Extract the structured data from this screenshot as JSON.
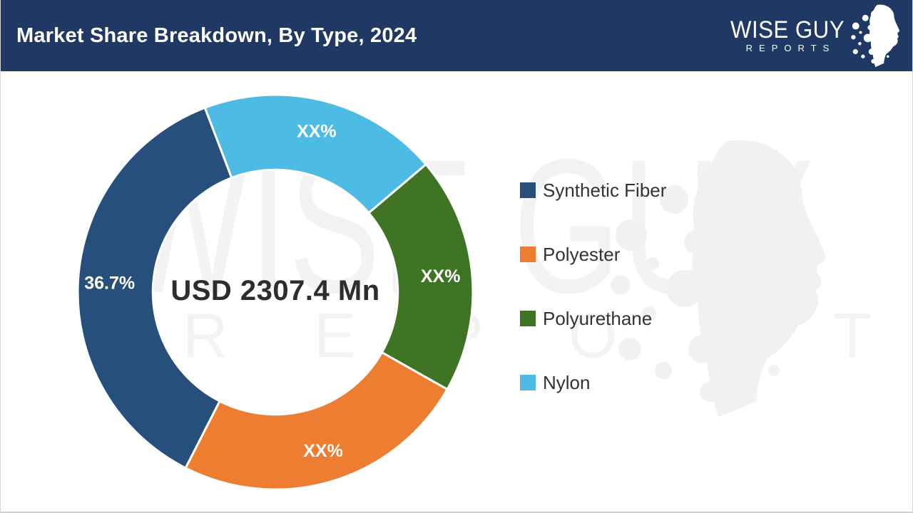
{
  "header": {
    "title": "Market Share Breakdown, By Type, 2024",
    "logo_name": "WISE GUY",
    "logo_subtitle": "REPORTS"
  },
  "watermark": {
    "line1": "WISE GUY",
    "line2": "R E P O R T S"
  },
  "chart_data": {
    "type": "donut",
    "title": "Market Share Breakdown, By Type, 2024",
    "center_label": "USD 2307.4 Mn",
    "start_angle_deg": 207,
    "inner_radius_ratio": 0.62,
    "label_radius_ratio": 0.84,
    "slices_clockwise": [
      {
        "name": "Synthetic Fiber",
        "pct": 36.7,
        "label": "36.7%",
        "color": "#26507b"
      },
      {
        "name": "Nylon",
        "pct": 19.6,
        "label": "XX%",
        "color": "#4ebbe4"
      },
      {
        "name": "Polyurethane",
        "pct": 19.4,
        "label": "XX%",
        "color": "#3e7424"
      },
      {
        "name": "Polyester",
        "pct": 24.3,
        "label": "XX%",
        "color": "#ed7d31"
      }
    ],
    "legend": [
      {
        "name": "Synthetic Fiber",
        "color": "#26507b"
      },
      {
        "name": "Polyester",
        "color": "#ed7d31"
      },
      {
        "name": "Polyurethane",
        "color": "#3e7424"
      },
      {
        "name": "Nylon",
        "color": "#4ebbe4"
      }
    ],
    "legend_position": "right"
  },
  "colors": {
    "header_bg": "#1f3864",
    "center_text": "#2d2d2d",
    "legend_text": "#333333",
    "watermark": "#f3f3f3",
    "border": "#d9d9d9"
  }
}
